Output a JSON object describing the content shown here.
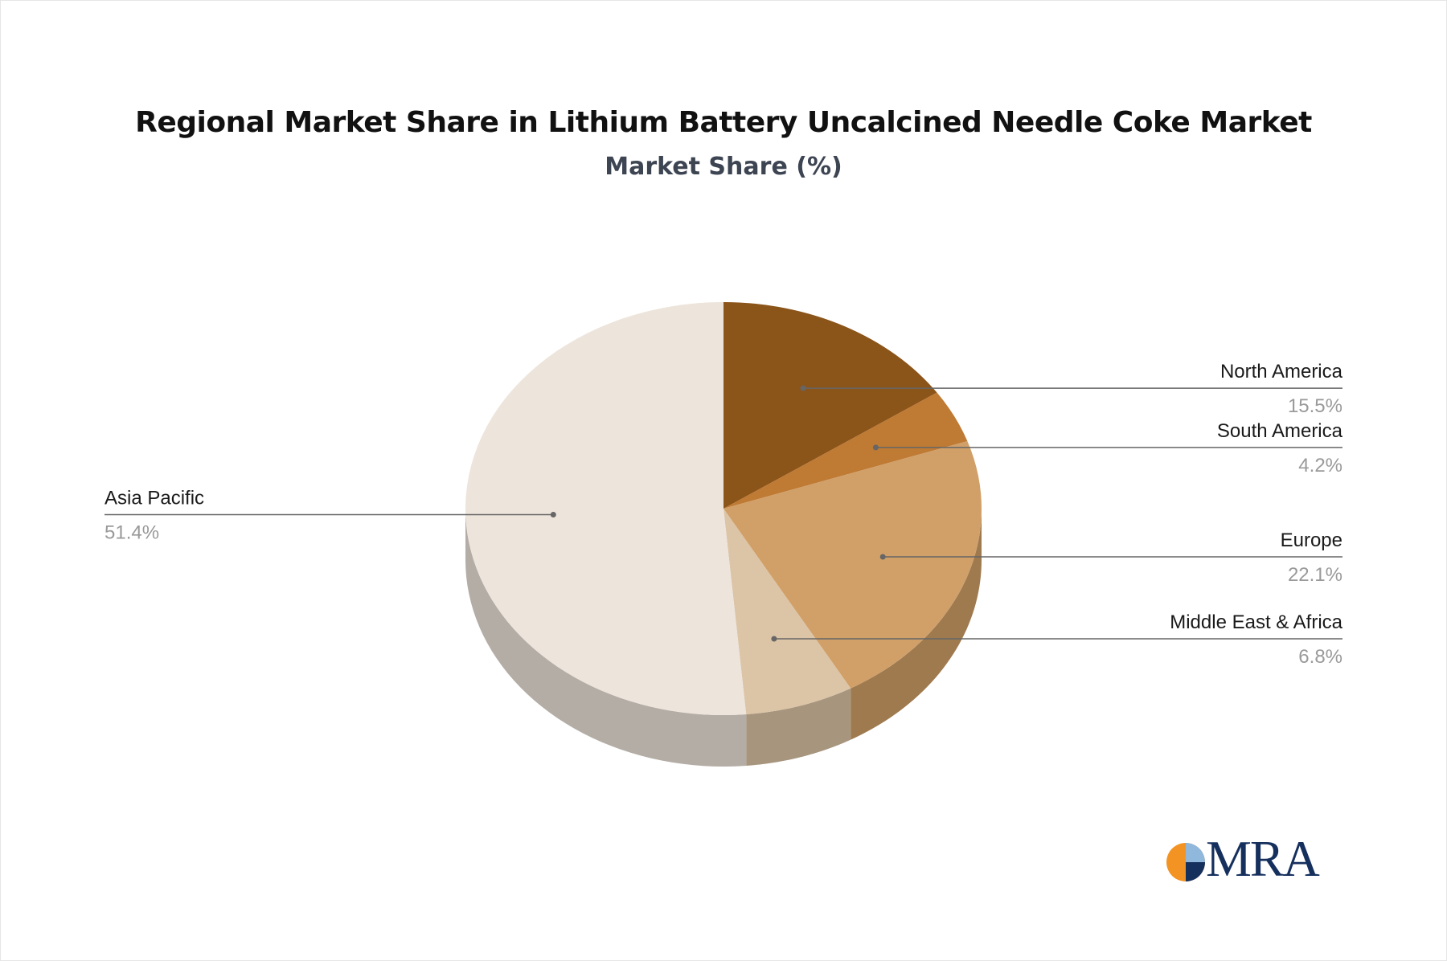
{
  "title": "Regional Market Share in Lithium Battery Uncalcined Needle Coke Market",
  "subtitle": "Market Share (%)",
  "logo": {
    "text": "MRA",
    "icon": "pie-logo-icon",
    "colors": [
      "#f39323",
      "#16305e",
      "#8fb8dc"
    ]
  },
  "chart_data": {
    "type": "pie",
    "style": "3d",
    "unit": "%",
    "title": "Regional Market Share in Lithium Battery Uncalcined Needle Coke Market",
    "subtitle": "Market Share (%)",
    "slices": [
      {
        "label": "North America",
        "value": 15.5,
        "display": "15.5%",
        "color": "#8b5419",
        "side": "right"
      },
      {
        "label": "South America",
        "value": 4.2,
        "display": "4.2%",
        "color": "#bf7a33",
        "side": "right"
      },
      {
        "label": "Europe",
        "value": 22.1,
        "display": "22.1%",
        "color": "#d1a068",
        "side": "right"
      },
      {
        "label": "Middle East & Africa",
        "value": 6.8,
        "display": "6.8%",
        "color": "#dcc4a6",
        "side": "right"
      },
      {
        "label": "Asia Pacific",
        "value": 51.4,
        "display": "51.4%",
        "color": "#ede4db",
        "side": "left"
      }
    ],
    "legend": "none"
  }
}
